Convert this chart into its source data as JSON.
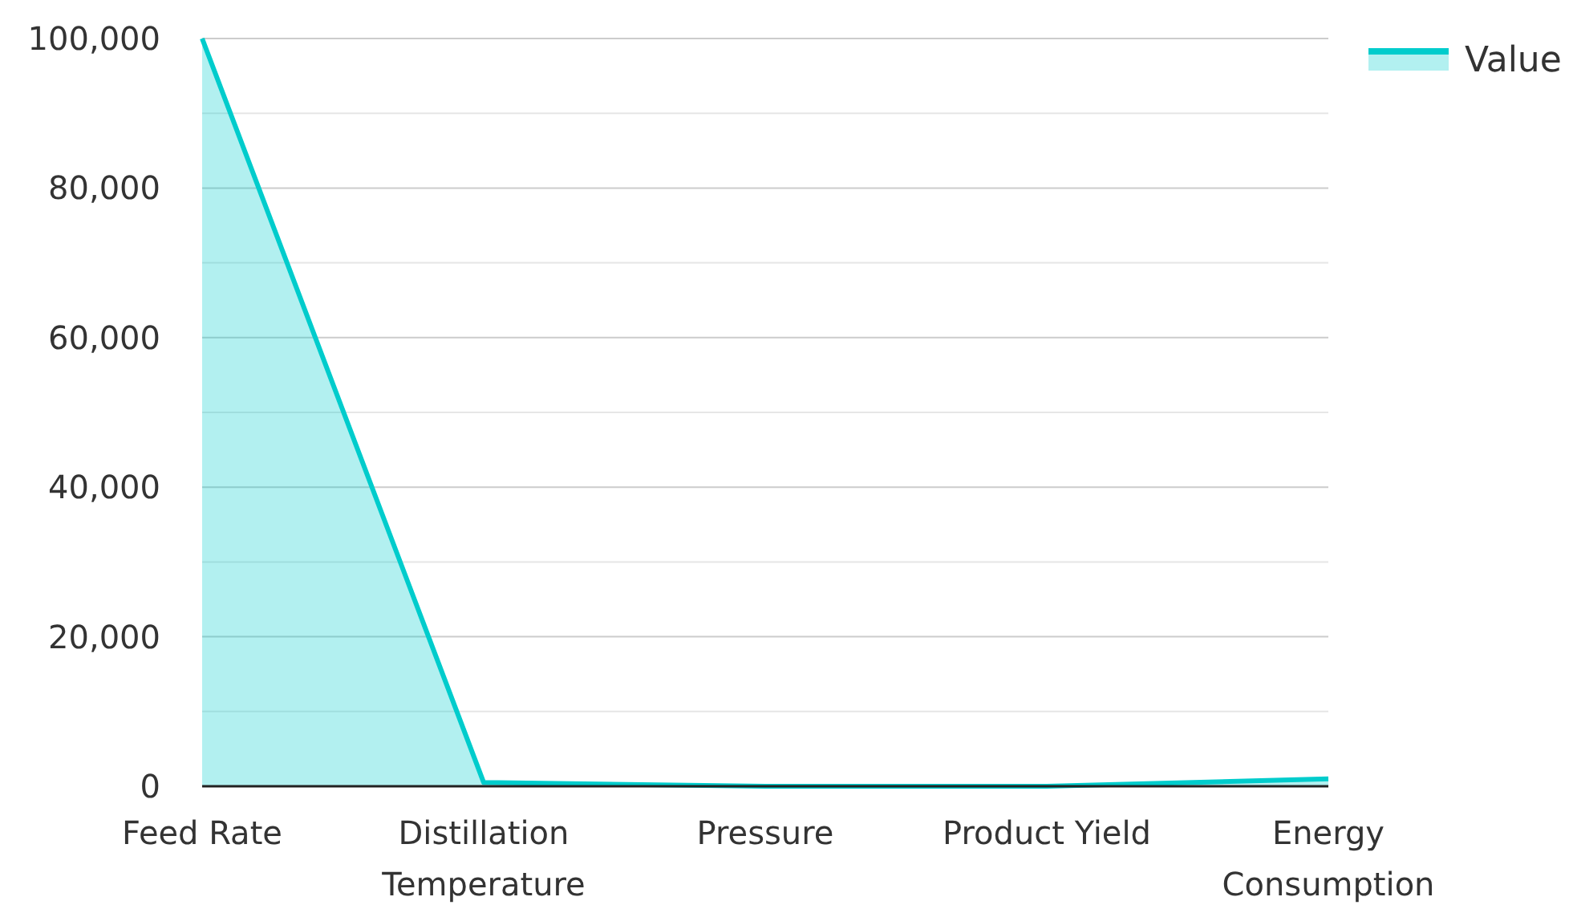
{
  "chart_data": {
    "type": "area",
    "categories": [
      "Feed Rate",
      "Distillation Temperature",
      "Pressure",
      "Product Yield",
      "Energy Consumption"
    ],
    "series": [
      {
        "name": "Value",
        "color": "#00cccc",
        "values": [
          100000,
          500,
          0,
          0,
          1000
        ]
      }
    ],
    "ylim": [
      0,
      100000
    ],
    "yticks": [
      0,
      {
        "value": 10000,
        "label": null
      },
      {
        "value": 20000,
        "label": "20,000"
      },
      {
        "value": 30000,
        "label": null
      },
      {
        "value": 40000,
        "label": "40,000"
      },
      {
        "value": 50000,
        "label": null
      },
      {
        "value": 60000,
        "label": "60,000"
      },
      {
        "value": 70000,
        "label": null
      },
      {
        "value": 80000,
        "label": "80,000"
      },
      {
        "value": 90000,
        "label": null
      },
      {
        "value": 100000,
        "label": "100,000"
      }
    ],
    "grid": "y",
    "legend": "top right"
  }
}
